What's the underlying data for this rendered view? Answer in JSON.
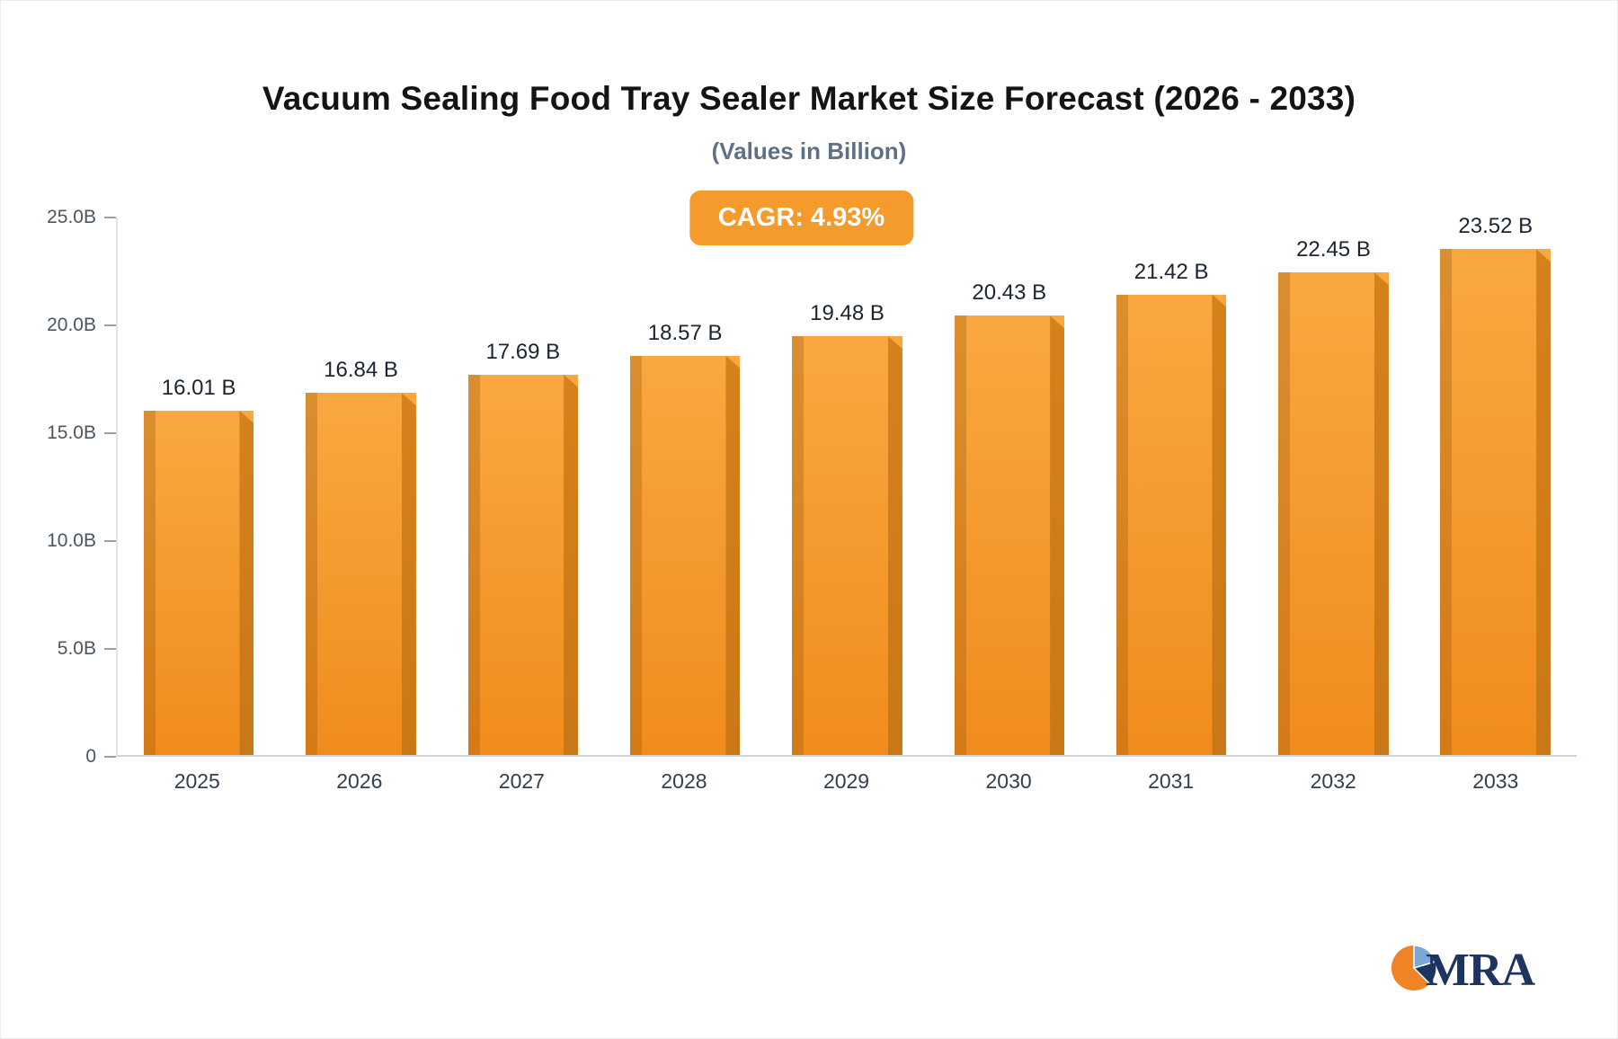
{
  "title": "Vacuum Sealing Food Tray Sealer Market Size Forecast (2026 - 2033)",
  "subtitle": "(Values in Billion)",
  "cagr_badge": "CAGR: 4.93%",
  "logo": {
    "text": "MRA"
  },
  "colors": {
    "bar_top": "#f9a840",
    "bar_bottom": "#f08c1c",
    "bar_side": "#c97817",
    "badge_bg": "#f59b2b",
    "logo_orange": "#ef8326",
    "logo_navy": "#1d3461",
    "logo_blue": "#7ba7d7"
  },
  "chart_data": {
    "type": "bar",
    "title": "Vacuum Sealing Food Tray Sealer Market Size Forecast (2026 - 2033)",
    "subtitle": "(Values in Billion)",
    "annotation": "CAGR: 4.93%",
    "categories": [
      "2025",
      "2026",
      "2027",
      "2028",
      "2029",
      "2030",
      "2031",
      "2032",
      "2033"
    ],
    "values": [
      16.01,
      16.84,
      17.69,
      18.57,
      19.48,
      20.43,
      21.42,
      22.45,
      23.52
    ],
    "labels": [
      "16.01 B",
      "16.84 B",
      "17.69 B",
      "18.57 B",
      "19.48 B",
      "20.43 B",
      "21.42 B",
      "22.45 B",
      "23.52 B"
    ],
    "unit": "Billion",
    "xlabel": "",
    "ylabel": "",
    "ylim": [
      0,
      25
    ],
    "grid": false,
    "legend": false,
    "yticks": [
      {
        "value": 0,
        "label": "0"
      },
      {
        "value": 5,
        "label": "5.0B"
      },
      {
        "value": 10,
        "label": "10.0B"
      },
      {
        "value": 15,
        "label": "15.0B"
      },
      {
        "value": 20,
        "label": "20.0B"
      },
      {
        "value": 25,
        "label": "25.0B"
      }
    ]
  }
}
